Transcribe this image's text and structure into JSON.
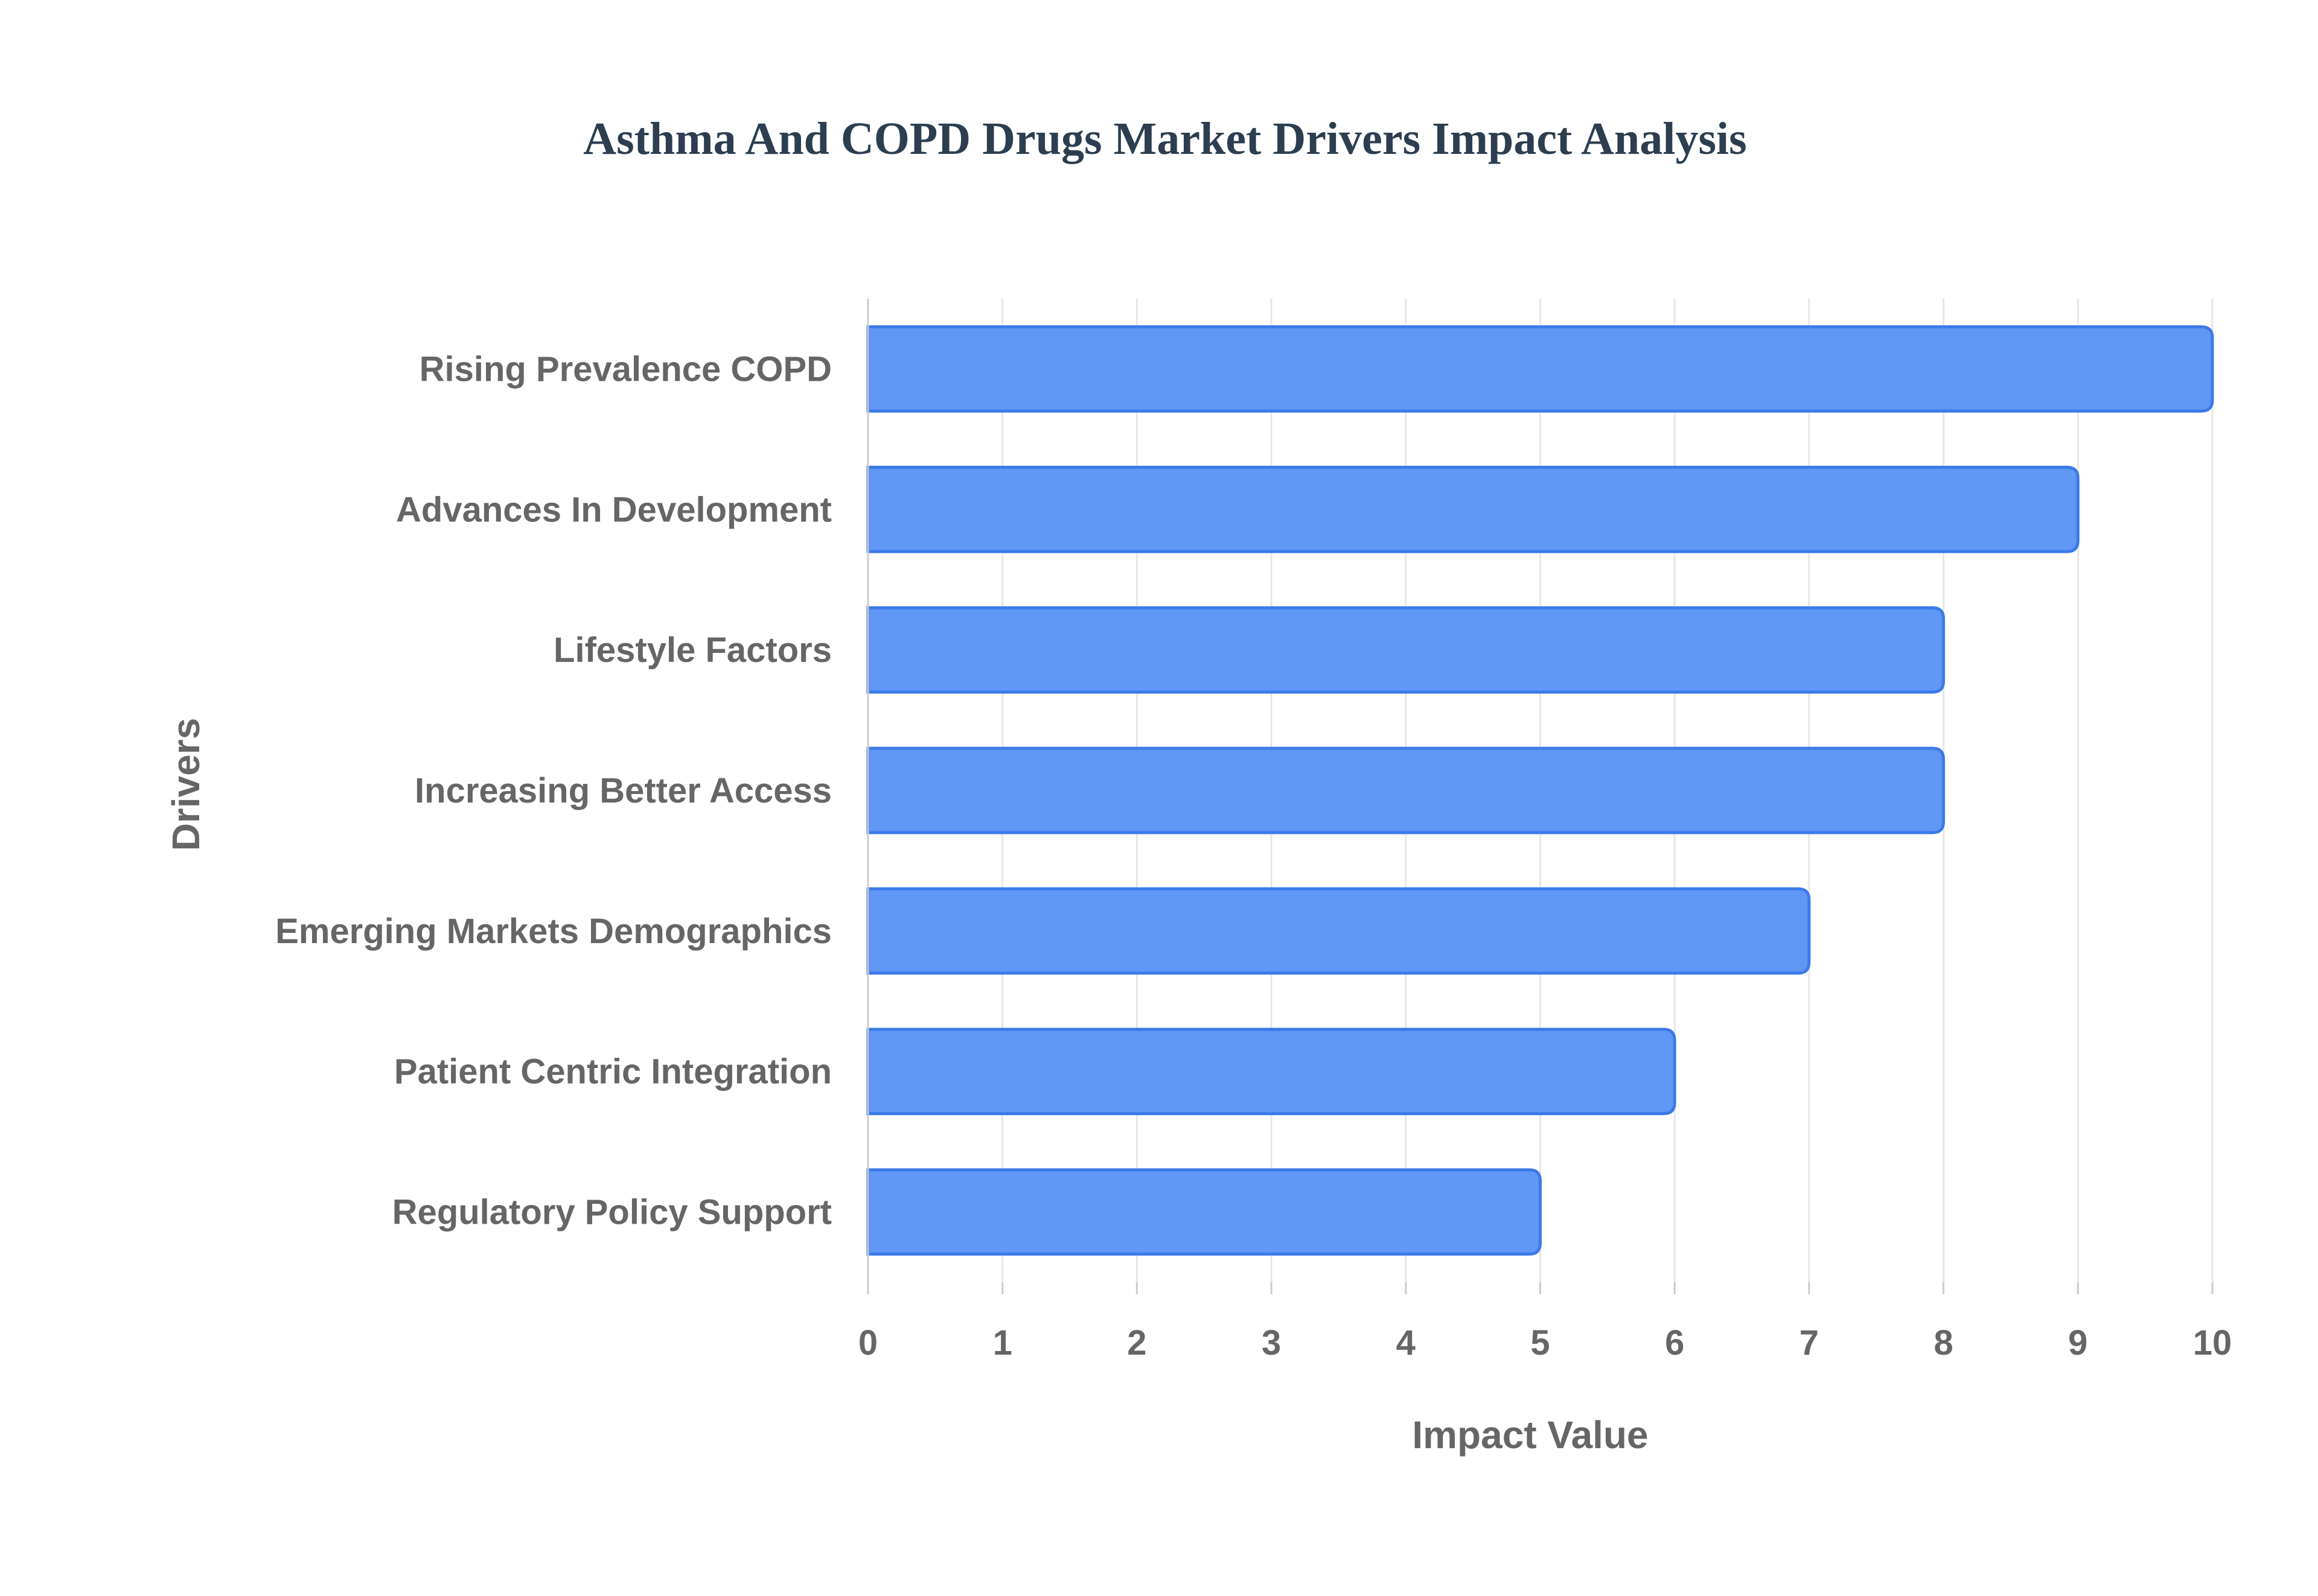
{
  "chart_data": {
    "type": "bar",
    "orientation": "horizontal",
    "title": "Asthma And COPD Drugs Market Drivers Impact Analysis",
    "xlabel": "Impact Value",
    "ylabel": "Drivers",
    "categories": [
      "Rising Prevalence COPD",
      "Advances In Development",
      "Lifestyle Factors",
      "Increasing Better Access",
      "Emerging Markets Demographics",
      "Patient Centric Integration",
      "Regulatory Policy Support"
    ],
    "values": [
      10,
      9,
      8,
      8,
      7,
      6,
      5
    ],
    "xlim": [
      0,
      10
    ],
    "xticks": [
      "0",
      "1",
      "2",
      "3",
      "4",
      "5",
      "6",
      "7",
      "8",
      "9",
      "10"
    ],
    "grid": true,
    "legend": "none",
    "colors": {
      "bar_fill": "#6197f5",
      "bar_stroke": "#3b7ae8",
      "title": "#2c3e50",
      "label": "#666666",
      "grid": "#e6e6e6",
      "axis": "#cccccc"
    }
  }
}
